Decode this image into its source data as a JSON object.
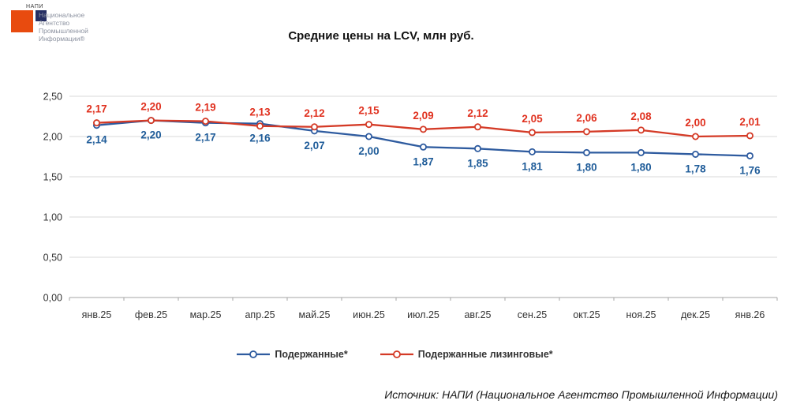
{
  "logo": {
    "abbr": "НАПИ",
    "lines": [
      "Национальное",
      "Агентство",
      "Промышленной",
      "Информации®"
    ]
  },
  "title": "Средние цены на LCV, млн руб.",
  "source": "Источник: НАПИ (Национальное Агентство Промышленной Информации)",
  "chart_data": {
    "type": "line",
    "title": "Средние цены на LCV, млн руб.",
    "categories": [
      "янв.25",
      "фев.25",
      "мар.25",
      "апр.25",
      "май.25",
      "июн.25",
      "июл.25",
      "авг.25",
      "сен.25",
      "окт.25",
      "ноя.25",
      "дек.25",
      "янв.26"
    ],
    "series": [
      {
        "name": "Подержанные*",
        "color": "#2e5b9f",
        "label_color": "#1f5c99",
        "label_position": "below",
        "values": [
          2.14,
          2.2,
          2.17,
          2.16,
          2.07,
          2.0,
          1.87,
          1.85,
          1.81,
          1.8,
          1.8,
          1.78,
          1.76
        ]
      },
      {
        "name": "Подержанные лизинговые*",
        "color": "#d43a26",
        "label_color": "#e0311f",
        "label_position": "above",
        "values": [
          2.17,
          2.2,
          2.19,
          2.13,
          2.12,
          2.15,
          2.09,
          2.12,
          2.05,
          2.06,
          2.08,
          2.0,
          2.01
        ]
      }
    ],
    "y_ticks": [
      0.0,
      0.5,
      1.0,
      1.5,
      2.0,
      2.5
    ],
    "ylim": [
      0,
      2.5
    ],
    "grid": true,
    "legend_position": "bottom",
    "decimal_separator": ","
  }
}
